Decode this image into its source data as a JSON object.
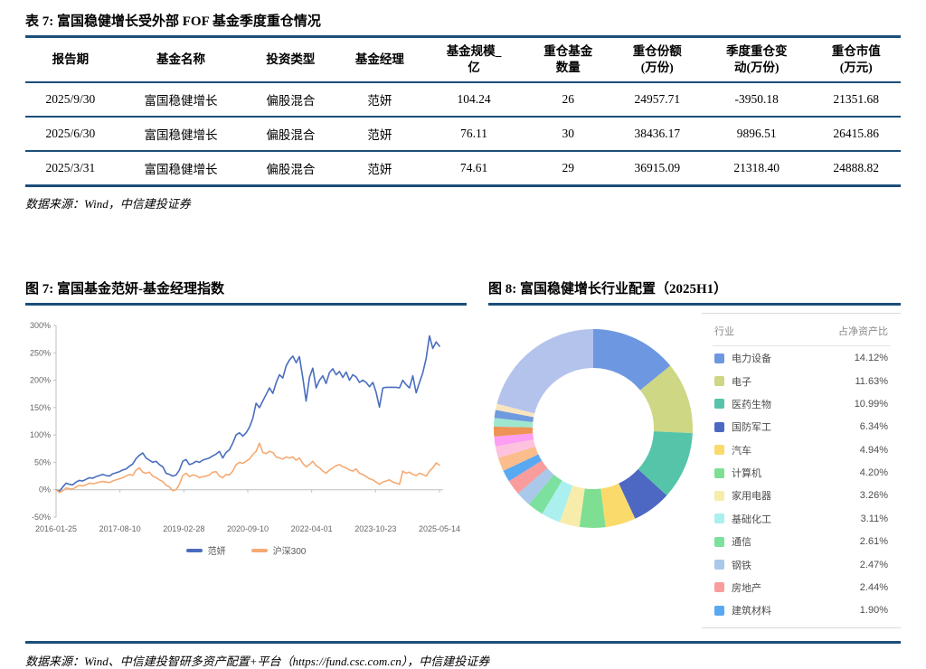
{
  "colors": {
    "rule_navy": "#1c4e79",
    "line_blue": "#4a6dbe",
    "line_orange": "#f5aa74",
    "axis_gray": "#bfbfbf",
    "label_gray": "#666666"
  },
  "table7": {
    "title": "表 7: 富国稳健增长受外部 FOF 基金季度重仓情况",
    "columns": [
      [
        "报告期"
      ],
      [
        "基金名称"
      ],
      [
        "投资类型"
      ],
      [
        "基金经理"
      ],
      [
        "基金规模_",
        "亿"
      ],
      [
        "重仓基金",
        "数量"
      ],
      [
        "重仓份额",
        "(万份)"
      ],
      [
        "季度重仓变",
        "动(万份)"
      ],
      [
        "重仓市值",
        "(万元)"
      ]
    ],
    "rows": [
      [
        "2025/9/30",
        "富国稳健增长",
        "偏股混合",
        "范妍",
        "104.24",
        "26",
        "24957.71",
        "-3950.18",
        "21351.68"
      ],
      [
        "2025/6/30",
        "富国稳健增长",
        "偏股混合",
        "范妍",
        "76.11",
        "30",
        "38436.17",
        "9896.51",
        "26415.86"
      ],
      [
        "2025/3/31",
        "富国稳健增长",
        "偏股混合",
        "范妍",
        "74.61",
        "29",
        "36915.09",
        "21318.40",
        "24888.82"
      ]
    ],
    "source": "数据来源：Wind，中信建投证券"
  },
  "fig7": {
    "title": "图 7: 富国基金范妍-基金经理指数"
  },
  "fig8": {
    "title": "图 8: 富国稳健增长行业配置（2025H1）",
    "legend_headers": {
      "industry": "行业",
      "weight": "占净资产比"
    }
  },
  "footer_source": "数据来源：Wind、中信建投智研多资产配置+平台（https://fund.csc.com.cn），中信建投证券",
  "chart_data": [
    {
      "type": "line",
      "title": "富国基金范妍-基金经理指数",
      "x_tick_labels": [
        "2016-01-25",
        "2017-08-10",
        "2019-02-28",
        "2020-09-10",
        "2022-04-01",
        "2023-10-23",
        "2025-05-14"
      ],
      "y_tick_values": [
        300,
        250,
        200,
        150,
        100,
        50,
        0,
        -50
      ],
      "y_tick_format": "percent",
      "ylim": [
        -50,
        300
      ],
      "grid": false,
      "legend_position": "bottom",
      "sampling": "monthly 2016-01 to 2025-08, values in percent",
      "series": [
        {
          "name": "范妍",
          "color": "#4a6dbe",
          "values": [
            0,
            -3,
            5,
            12,
            10,
            9,
            14,
            17,
            16,
            19,
            22,
            21,
            24,
            26,
            28,
            26,
            25,
            29,
            31,
            33,
            36,
            38,
            43,
            47,
            57,
            63,
            67,
            58,
            54,
            50,
            52,
            46,
            42,
            30,
            28,
            25,
            27,
            36,
            52,
            55,
            46,
            48,
            52,
            50,
            54,
            56,
            58,
            62,
            65,
            70,
            58,
            68,
            73,
            85,
            100,
            104,
            98,
            104,
            114,
            130,
            158,
            150,
            162,
            174,
            186,
            176,
            195,
            210,
            204,
            226,
            237,
            244,
            232,
            243,
            205,
            162,
            205,
            222,
            186,
            200,
            208,
            194,
            214,
            221,
            210,
            216,
            205,
            215,
            200,
            210,
            206,
            196,
            200,
            196,
            188,
            196,
            178,
            151,
            186,
            187,
            187,
            187,
            187,
            186,
            200,
            192,
            186,
            208,
            177,
            196,
            214,
            240,
            281,
            258,
            270,
            262
          ]
        },
        {
          "name": "沪深300",
          "color": "#f5aa74",
          "values": [
            0,
            -5,
            -2,
            3,
            2,
            1,
            5,
            8,
            7,
            9,
            12,
            11,
            12,
            14,
            15,
            14,
            13,
            16,
            18,
            20,
            22,
            25,
            28,
            26,
            36,
            40,
            32,
            30,
            32,
            25,
            22,
            18,
            15,
            8,
            5,
            -2,
            0,
            10,
            26,
            30,
            24,
            27,
            26,
            22,
            24,
            25,
            27,
            32,
            33,
            25,
            22,
            28,
            27,
            34,
            46,
            50,
            48,
            52,
            56,
            64,
            70,
            85,
            68,
            66,
            70,
            68,
            60,
            58,
            56,
            60,
            58,
            60,
            54,
            58,
            48,
            42,
            46,
            52,
            44,
            40,
            34,
            30,
            36,
            40,
            44,
            46,
            42,
            40,
            36,
            34,
            38,
            30,
            28,
            24,
            20,
            18,
            14,
            10,
            14,
            16,
            18,
            14,
            12,
            10,
            34,
            30,
            32,
            28,
            26,
            30,
            28,
            25,
            34,
            40,
            49,
            45
          ]
        }
      ]
    },
    {
      "type": "pie",
      "subtype": "donut",
      "title": "富国稳健增长行业配置（2025H1）",
      "unit": "% of net assets",
      "legend_position": "right",
      "segments": [
        {
          "label": "电力设备",
          "value": 14.12,
          "display": "14.12%",
          "color": "#6d97e0"
        },
        {
          "label": "电子",
          "value": 11.63,
          "display": "11.63%",
          "color": "#cdd784"
        },
        {
          "label": "医药生物",
          "value": 10.99,
          "display": "10.99%",
          "color": "#56c4a9"
        },
        {
          "label": "国防军工",
          "value": 6.34,
          "display": "6.34%",
          "color": "#4d68c2"
        },
        {
          "label": "汽车",
          "value": 4.94,
          "display": "4.94%",
          "color": "#fbda6c"
        },
        {
          "label": "计算机",
          "value": 4.2,
          "display": "4.20%",
          "color": "#7edf93"
        },
        {
          "label": "家用电器",
          "value": 3.26,
          "display": "3.26%",
          "color": "#f8ecaa"
        },
        {
          "label": "基础化工",
          "value": 3.11,
          "display": "3.11%",
          "color": "#abf0ee"
        },
        {
          "label": "通信",
          "value": 2.61,
          "display": "2.61%",
          "color": "#7ce09e"
        },
        {
          "label": "钢铁",
          "value": 2.47,
          "display": "2.47%",
          "color": "#a9c8ea"
        },
        {
          "label": "房地产",
          "value": 2.44,
          "display": "2.44%",
          "color": "#f99c9c"
        },
        {
          "label": "建筑材料",
          "value": 1.9,
          "display": "1.90%",
          "color": "#58a9f2"
        },
        {
          "label": "",
          "value": 2.2,
          "color": "#fbbd8c"
        },
        {
          "label": "",
          "value": 1.9,
          "color": "#fdc2dd"
        },
        {
          "label": "",
          "value": 1.6,
          "color": "#fc9ef2"
        },
        {
          "label": "",
          "value": 1.6,
          "color": "#ee9355"
        },
        {
          "label": "",
          "value": 1.4,
          "color": "#9fe6cf"
        },
        {
          "label": "",
          "value": 1.3,
          "color": "#6f9ade"
        },
        {
          "label": "",
          "value": 1.0,
          "color": "#f8e4be"
        },
        {
          "label": "",
          "value": 20.99,
          "color": "#b3c3ec"
        }
      ]
    }
  ]
}
